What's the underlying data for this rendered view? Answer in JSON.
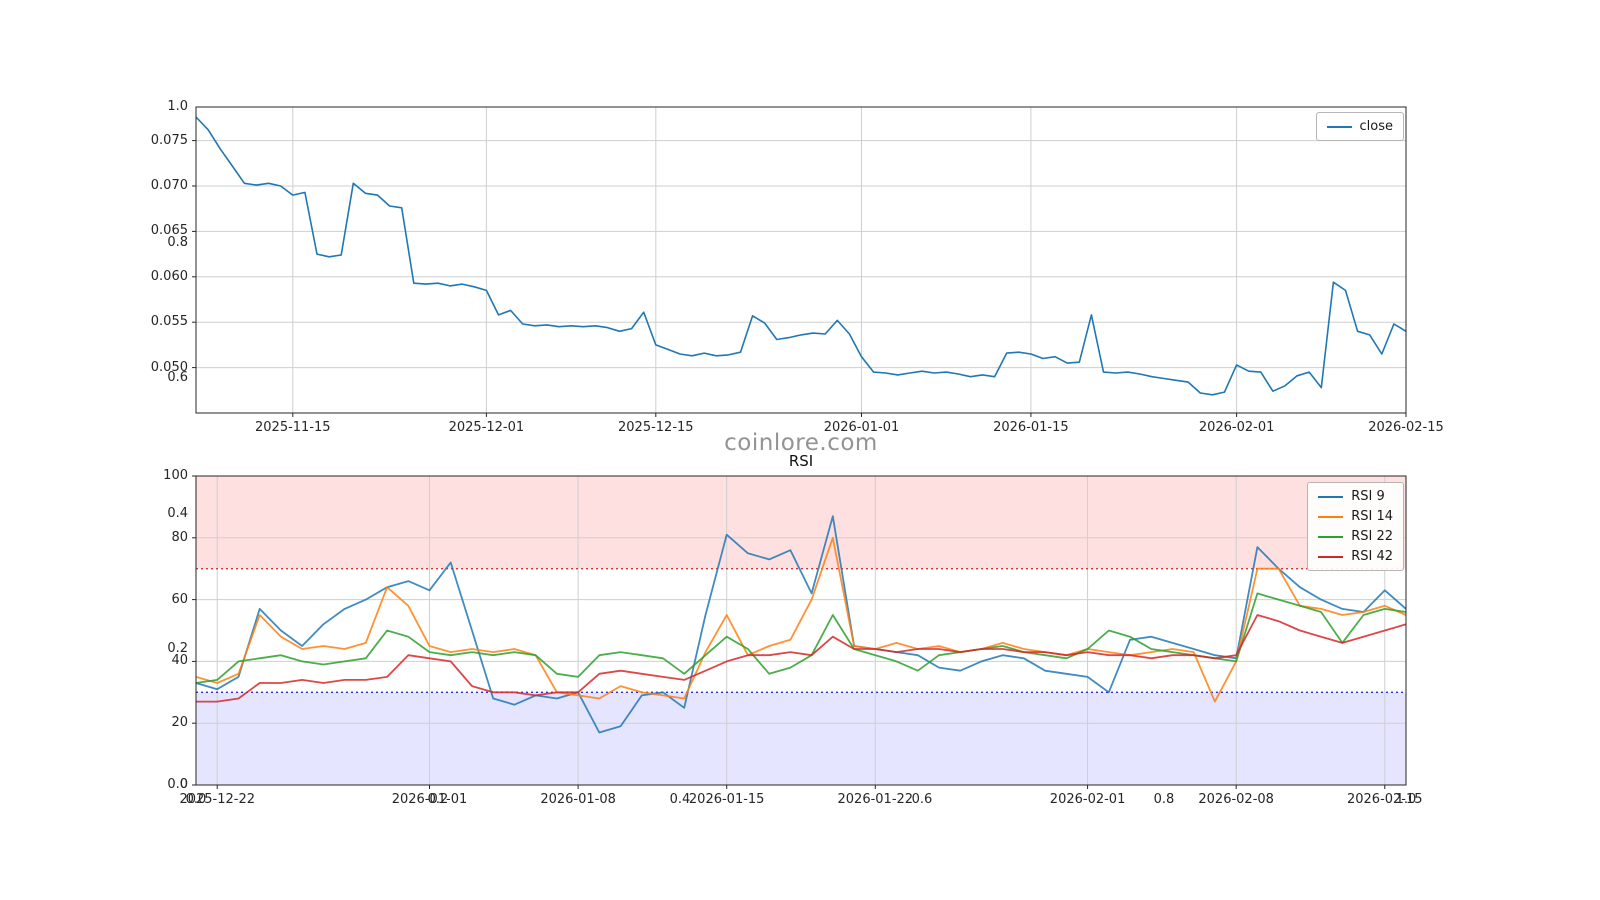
{
  "watermark": "coinlore.com",
  "ghost_axis": {
    "y_labels": [
      "1.0",
      "0.8",
      "0.6",
      "0.4",
      "0.2",
      "0.0"
    ],
    "x_labels": [
      "0.0",
      "0.2",
      "0.4",
      "0.6",
      "0.8",
      "1.0"
    ]
  },
  "chart_data": [
    {
      "type": "line",
      "name": "price",
      "title": "",
      "x_start_date": "2025-11-07",
      "x_span_days": 100,
      "ylim": [
        0.045,
        0.0787
      ],
      "grid": true,
      "legend_position": "upper right",
      "y_ticks": [
        {
          "label": "0.075",
          "v": 0.075
        },
        {
          "label": "0.070",
          "v": 0.07
        },
        {
          "label": "0.065",
          "v": 0.065
        },
        {
          "label": "0.060",
          "v": 0.06
        },
        {
          "label": "0.055",
          "v": 0.055
        },
        {
          "label": "0.050",
          "v": 0.05
        }
      ],
      "x_ticks": [
        {
          "label": "2025-11-15",
          "day": 8
        },
        {
          "label": "2025-12-01",
          "day": 24
        },
        {
          "label": "2025-12-15",
          "day": 38
        },
        {
          "label": "2026-01-01",
          "day": 55
        },
        {
          "label": "2026-01-15",
          "day": 69
        },
        {
          "label": "2026-02-01",
          "day": 86
        },
        {
          "label": "2026-02-15",
          "day": 100
        }
      ],
      "series": [
        {
          "name": "close",
          "color": "#1f77b4",
          "values": [
            0.0776,
            0.0762,
            0.0741,
            0.0722,
            0.0703,
            0.0701,
            0.0703,
            0.07,
            0.069,
            0.0693,
            0.0625,
            0.0622,
            0.0624,
            0.0703,
            0.0692,
            0.069,
            0.0678,
            0.0676,
            0.0593,
            0.0592,
            0.0593,
            0.059,
            0.0592,
            0.0589,
            0.0585,
            0.0558,
            0.0563,
            0.0548,
            0.0546,
            0.0547,
            0.0545,
            0.0546,
            0.0545,
            0.0546,
            0.0544,
            0.054,
            0.0543,
            0.0561,
            0.0525,
            0.052,
            0.0515,
            0.0513,
            0.0516,
            0.0513,
            0.0514,
            0.0517,
            0.0557,
            0.0549,
            0.0531,
            0.0533,
            0.0536,
            0.0538,
            0.0537,
            0.0552,
            0.0537,
            0.0512,
            0.0495,
            0.0494,
            0.0492,
            0.0494,
            0.0496,
            0.0494,
            0.0495,
            0.0493,
            0.049,
            0.0492,
            0.049,
            0.0516,
            0.0517,
            0.0515,
            0.051,
            0.0512,
            0.0505,
            0.0506,
            0.0558,
            0.0495,
            0.0494,
            0.0495,
            0.0493,
            0.049,
            0.0488,
            0.0486,
            0.0484,
            0.0472,
            0.047,
            0.0473,
            0.0503,
            0.0496,
            0.0495,
            0.0474,
            0.048,
            0.0491,
            0.0495,
            0.0478,
            0.0594,
            0.0585,
            0.054,
            0.0536,
            0.0515,
            0.0548,
            0.054
          ]
        }
      ]
    },
    {
      "type": "line",
      "name": "rsi",
      "title": "RSI",
      "x_start_date": "2025-12-21",
      "x_span_days": 57,
      "ylim": [
        0,
        100
      ],
      "grid": true,
      "legend_position": "upper right",
      "overbought_level": 70,
      "oversold_level": 30,
      "shaded_bands": [
        {
          "from": 70,
          "to": 100,
          "color": "rgba(255,0,0,0.12)"
        },
        {
          "from": 0,
          "to": 30,
          "color": "rgba(0,0,255,0.10)"
        }
      ],
      "dotted_lines": [
        {
          "v": 70,
          "color": "#dc3232"
        },
        {
          "v": 30,
          "color": "#2b2bd5"
        }
      ],
      "y_ticks": [
        {
          "label": "100",
          "v": 100
        },
        {
          "label": "80",
          "v": 80
        },
        {
          "label": "60",
          "v": 60
        },
        {
          "label": "40",
          "v": 40
        },
        {
          "label": "20",
          "v": 20
        },
        {
          "label": "0",
          "v": 0
        }
      ],
      "x_ticks": [
        {
          "label": "2025-12-22",
          "day": 1
        },
        {
          "label": "2026-01-01",
          "day": 11
        },
        {
          "label": "2026-01-08",
          "day": 18
        },
        {
          "label": "2026-01-15",
          "day": 25
        },
        {
          "label": "2026-01-22",
          "day": 32
        },
        {
          "label": "2026-02-01",
          "day": 42
        },
        {
          "label": "2026-02-08",
          "day": 49
        },
        {
          "label": "2026-02-15",
          "day": 56
        }
      ],
      "series": [
        {
          "name": "RSI 9",
          "color": "#1f77b4",
          "values": [
            33,
            31,
            35,
            57,
            50,
            45,
            52,
            57,
            60,
            64,
            66,
            63,
            72,
            50,
            28,
            26,
            29,
            28,
            30,
            17,
            19,
            29,
            30,
            25,
            55,
            81,
            75,
            73,
            76,
            62,
            87,
            45,
            44,
            43,
            42,
            38,
            37,
            40,
            42,
            41,
            37,
            36,
            35,
            30,
            47,
            48,
            46,
            44,
            42,
            41,
            77,
            70,
            64,
            60,
            57,
            56,
            63,
            57
          ]
        },
        {
          "name": "RSI 14",
          "color": "#ff7f0e",
          "values": [
            35,
            33,
            36,
            55,
            48,
            44,
            45,
            44,
            46,
            64,
            58,
            45,
            43,
            44,
            43,
            44,
            42,
            30,
            29,
            28,
            32,
            30,
            29,
            28,
            43,
            55,
            42,
            45,
            47,
            60,
            80,
            45,
            44,
            46,
            44,
            45,
            43,
            44,
            46,
            44,
            43,
            42,
            44,
            43,
            42,
            43,
            44,
            43,
            27,
            40,
            70,
            70,
            58,
            57,
            55,
            56,
            58,
            55
          ]
        },
        {
          "name": "RSI 22",
          "color": "#2ca02c",
          "values": [
            33,
            34,
            40,
            41,
            42,
            40,
            39,
            40,
            41,
            50,
            48,
            43,
            42,
            43,
            42,
            43,
            42,
            36,
            35,
            42,
            43,
            42,
            41,
            36,
            42,
            48,
            44,
            36,
            38,
            42,
            55,
            44,
            42,
            40,
            37,
            42,
            43,
            44,
            45,
            43,
            42,
            41,
            44,
            50,
            48,
            44,
            43,
            42,
            41,
            40,
            62,
            60,
            58,
            56,
            46,
            55,
            57,
            56
          ]
        },
        {
          "name": "RSI 42",
          "color": "#d62728",
          "values": [
            27,
            27,
            28,
            33,
            33,
            34,
            33,
            34,
            34,
            35,
            42,
            41,
            40,
            32,
            30,
            30,
            29,
            30,
            30,
            36,
            37,
            36,
            35,
            34,
            37,
            40,
            42,
            42,
            43,
            42,
            48,
            44,
            44,
            43,
            44,
            44,
            43,
            44,
            44,
            43,
            43,
            42,
            43,
            42,
            42,
            41,
            42,
            42,
            41,
            42,
            55,
            53,
            50,
            48,
            46,
            48,
            50,
            52
          ]
        }
      ]
    }
  ]
}
